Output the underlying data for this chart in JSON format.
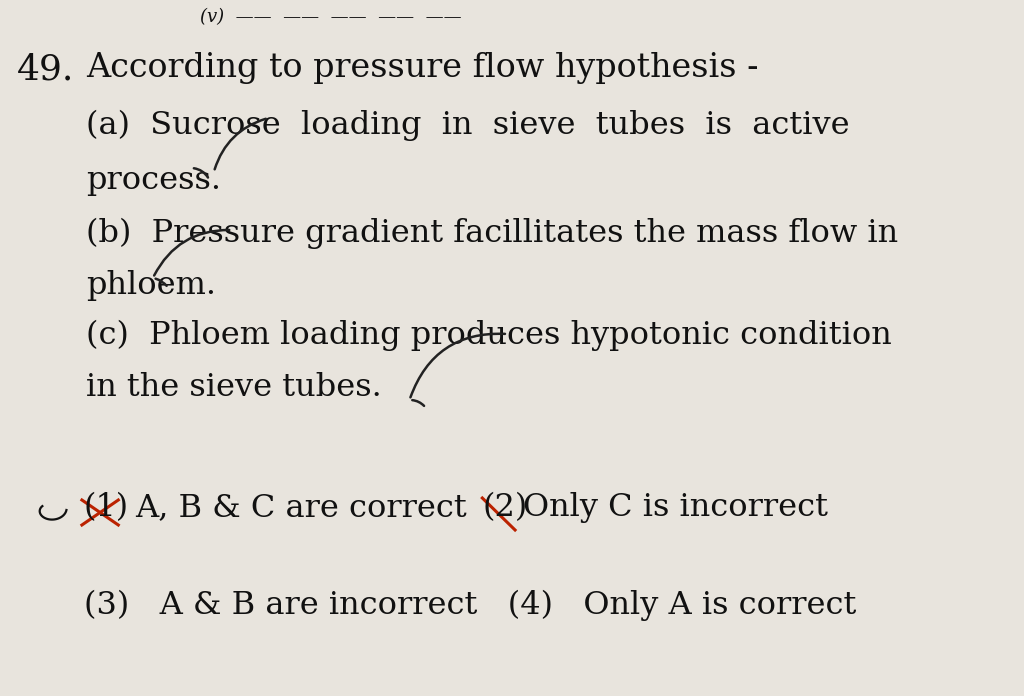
{
  "bg_color": "#e8e4dd",
  "text_color": "#111111",
  "red_color": "#bb2200",
  "fig_width": 10.24,
  "fig_height": 6.96,
  "font_size_q_num": 26,
  "font_size_q_text": 24,
  "font_size_options": 23,
  "font_size_answers": 23,
  "top_stub": "(v)  ——  ——  ——  ——  ——",
  "q_num": "49.",
  "q_text": "According to pressure flow hypothesis -",
  "opt_a1": "(a)  Sucrose  loading  in  sieve  tubes  is  active",
  "opt_a2": "process.",
  "opt_b1": "(b)  Pressure gradient facillitates the mass flow in",
  "opt_b2": "phloem.",
  "opt_c1": "(c)  Phloem loading produces hypotonic condition",
  "opt_c2": "in the sieve tubes.",
  "ans1_pre": "A, B & C are correct",
  "ans1_num": "(2)",
  "ans1_post": "  Only C is incorrect",
  "ans2": "(3)   A & B are incorrect   (4)   Only A is correct"
}
